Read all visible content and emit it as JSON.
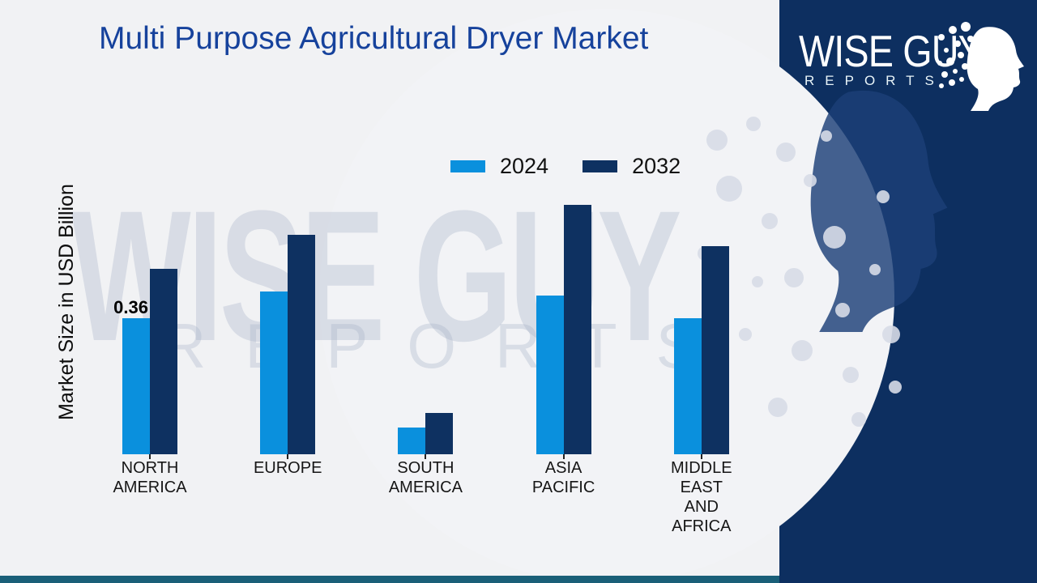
{
  "title": "Multi Purpose Agricultural Dryer Market",
  "brand": {
    "line1": "WISE GUY",
    "line2": "REPORTS"
  },
  "watermark": {
    "line1": "WISE GUY",
    "line2": "REPORTS"
  },
  "chart_data": {
    "type": "bar",
    "title": "Multi Purpose Agricultural Dryer Market",
    "ylabel": "Market Size in USD Billion",
    "xlabel": "",
    "units": "USD Billion",
    "grid": false,
    "legend_position": "top",
    "ylim": [
      0,
      0.7
    ],
    "category_names": [
      "NORTH AMERICA",
      "EUROPE",
      "SOUTH AMERICA",
      "ASIA PACIFIC",
      "MIDDLE EAST AND AFRICA"
    ],
    "categories": [
      [
        "NORTH",
        "AMERICA"
      ],
      [
        "EUROPE"
      ],
      [
        "SOUTH",
        "AMERICA"
      ],
      [
        "ASIA",
        "PACIFIC"
      ],
      [
        "MIDDLE",
        "EAST",
        "AND",
        "AFRICA"
      ]
    ],
    "series": [
      {
        "name": "2024",
        "color": "#0a90dd",
        "values": [
          0.36,
          0.43,
          0.07,
          0.42,
          0.36
        ]
      },
      {
        "name": "2032",
        "color": "#0e3161",
        "values": [
          0.49,
          0.58,
          0.11,
          0.66,
          0.55
        ]
      }
    ],
    "point_labels": [
      {
        "series": 0,
        "index": 0,
        "text": "0.36"
      }
    ]
  },
  "colors": {
    "background": "#f1f2f4",
    "panel_navy": "#0d2f60",
    "circle_light": "#f2f3f6",
    "bar_2024": "#0a90dd",
    "bar_2032": "#0e3161",
    "teal_strip": "#1a5f78",
    "title_blue": "#16429c",
    "watermark_gray": "#aab3c6"
  }
}
